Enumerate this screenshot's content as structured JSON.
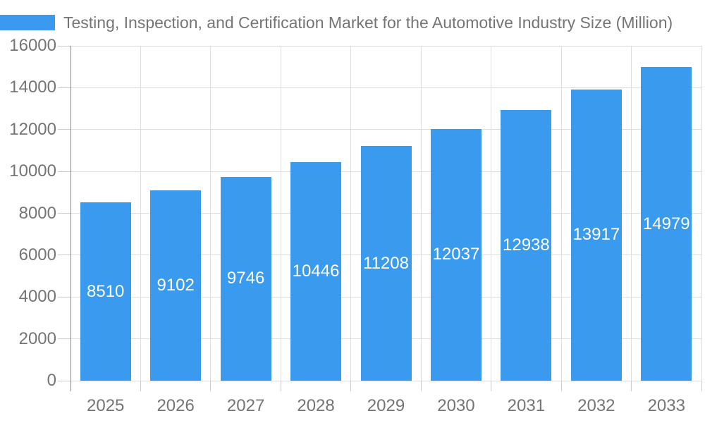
{
  "chart_data": {
    "type": "bar",
    "title": "Testing, Inspection, and Certification Market for the Automotive Industry Size (Million)",
    "series_name": "Testing, Inspection, and Certification Market for the Automotive Industry Size (Million)",
    "categories": [
      "2025",
      "2026",
      "2027",
      "2028",
      "2029",
      "2030",
      "2031",
      "2032",
      "2033"
    ],
    "values": [
      8510,
      9102,
      9746,
      10446,
      11208,
      12037,
      12938,
      13917,
      14979
    ],
    "xlabel": "",
    "ylabel": "",
    "ylim": [
      0,
      16000
    ],
    "ytick_step": 2000,
    "ytick_labels": [
      "0",
      "2000",
      "4000",
      "6000",
      "8000",
      "10000",
      "12000",
      "14000",
      "16000"
    ],
    "grid": true,
    "legend_position": "top-left",
    "colors": {
      "bar": "#3A9AED",
      "bar_label": "#FFFFFF",
      "text": "#757575",
      "gridline": "#DDDDDD",
      "tick": "#CCCCCC",
      "axis_line": "#888888",
      "background": "#FFFFFF"
    }
  }
}
